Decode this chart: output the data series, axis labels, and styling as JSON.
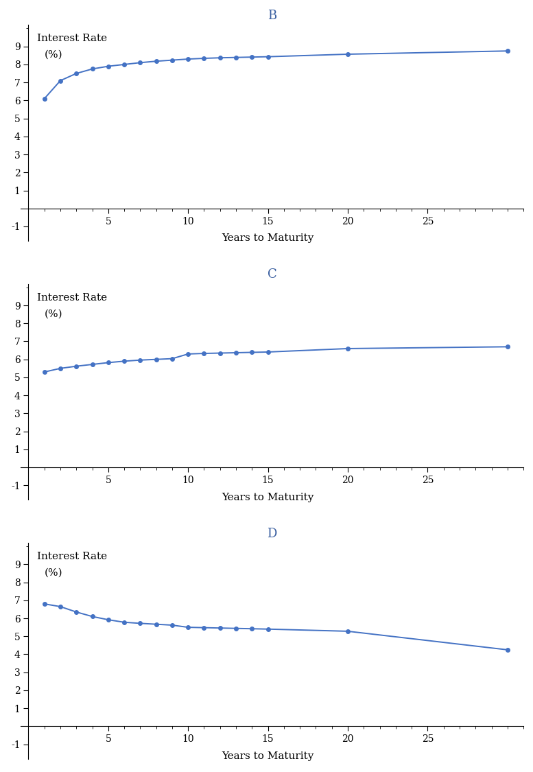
{
  "title_B": "B",
  "title_C": "C",
  "title_D": "D",
  "ylabel_line1": "Interest Rate",
  "ylabel_line2": "(%)",
  "xlabel": "Years to Maturity",
  "line_color": "#4472C4",
  "marker": "o",
  "markersize": 4,
  "linewidth": 1.4,
  "ylim": [
    -1.8,
    10.2
  ],
  "xlim": [
    -0.5,
    31
  ],
  "yticks": [
    -1,
    1,
    2,
    3,
    4,
    5,
    6,
    7,
    8,
    9
  ],
  "xticks": [
    5,
    10,
    15,
    20,
    25
  ],
  "title_fontsize": 13,
  "title_color": "#3A5FA0",
  "axis_label_fontsize": 11,
  "tick_fontsize": 10,
  "B_x": [
    1,
    2,
    3,
    4,
    5,
    6,
    7,
    8,
    9,
    10,
    11,
    12,
    13,
    14,
    15,
    20,
    30
  ],
  "B_y": [
    6.1,
    7.1,
    7.5,
    7.75,
    7.9,
    8.0,
    8.1,
    8.18,
    8.24,
    8.3,
    8.34,
    8.37,
    8.39,
    8.41,
    8.43,
    8.57,
    8.75
  ],
  "C_x": [
    1,
    2,
    3,
    4,
    5,
    6,
    7,
    8,
    9,
    10,
    11,
    12,
    13,
    14,
    15,
    20,
    30
  ],
  "C_y": [
    5.3,
    5.5,
    5.62,
    5.72,
    5.82,
    5.9,
    5.96,
    6.0,
    6.04,
    6.3,
    6.33,
    6.35,
    6.37,
    6.39,
    6.41,
    6.6,
    6.7
  ],
  "D_x": [
    1,
    2,
    3,
    4,
    5,
    6,
    7,
    8,
    9,
    10,
    11,
    12,
    13,
    14,
    15,
    20,
    30
  ],
  "D_y": [
    6.8,
    6.65,
    6.35,
    6.1,
    5.92,
    5.78,
    5.72,
    5.67,
    5.62,
    5.5,
    5.48,
    5.46,
    5.44,
    5.42,
    5.4,
    5.28,
    4.25
  ]
}
